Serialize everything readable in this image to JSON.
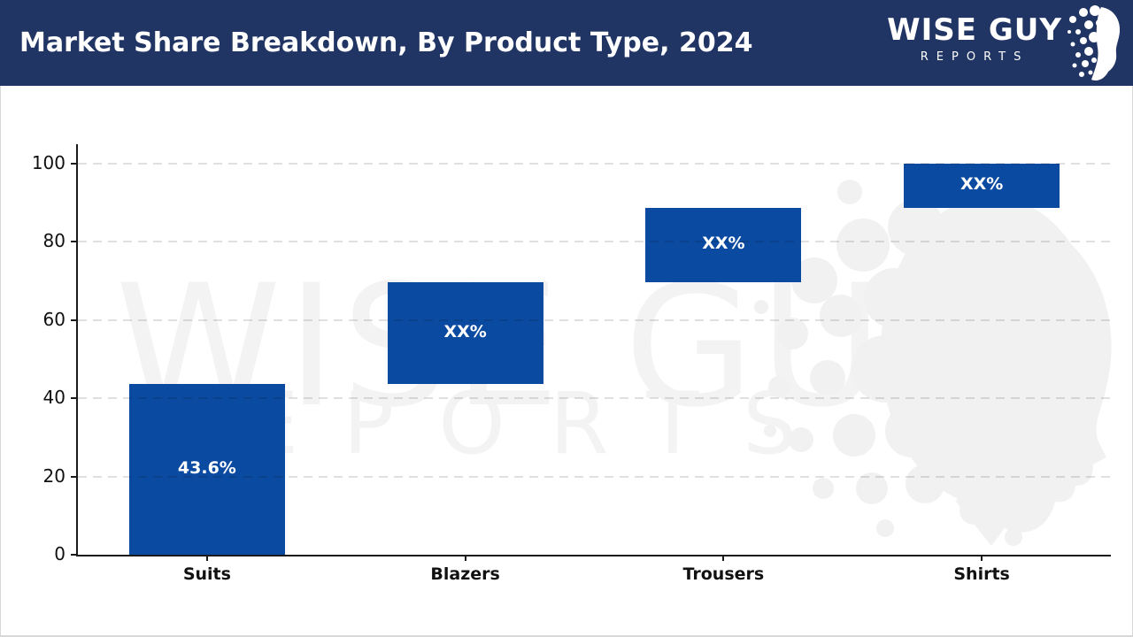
{
  "header": {
    "title": "Market Share Breakdown, By Product Type, 2024",
    "logo": {
      "line1": "WISE GUY",
      "line2": "REPORTS"
    }
  },
  "watermark": {
    "line1": "WISE GUY",
    "line2": "REPORTS"
  },
  "colors": {
    "header_bg": "#213564",
    "bar": "#0a4aa0",
    "bar_label": "#ffffff",
    "axis": "#1a1a1a",
    "gridline": "rgba(0,0,0,0.12)",
    "watermark": "#f3f3f3",
    "page_border": "#d8d8d8",
    "title_text": "#ffffff"
  },
  "chart_data": {
    "type": "bar",
    "subtype": "waterfall",
    "title": "Market Share Breakdown, By Product Type, 2024",
    "categories": [
      "Suits",
      "Blazers",
      "Trousers",
      "Shirts"
    ],
    "bars": [
      {
        "category": "Suits",
        "start": 0,
        "end": 43.6,
        "value": 43.6,
        "label": "43.6%"
      },
      {
        "category": "Blazers",
        "start": 43.6,
        "end": 69.6,
        "value": 26.0,
        "label": "XX%"
      },
      {
        "category": "Trousers",
        "start": 69.6,
        "end": 88.7,
        "value": 19.1,
        "label": "XX%"
      },
      {
        "category": "Shirts",
        "start": 88.7,
        "end": 100.0,
        "value": 11.3,
        "label": "XX%"
      }
    ],
    "yticks": [
      0,
      20,
      40,
      60,
      80,
      100
    ],
    "ylim": [
      0,
      105
    ],
    "xlabel": "",
    "ylabel": "",
    "grid": "dashed horizontal",
    "legend": "none",
    "unit": "%"
  }
}
